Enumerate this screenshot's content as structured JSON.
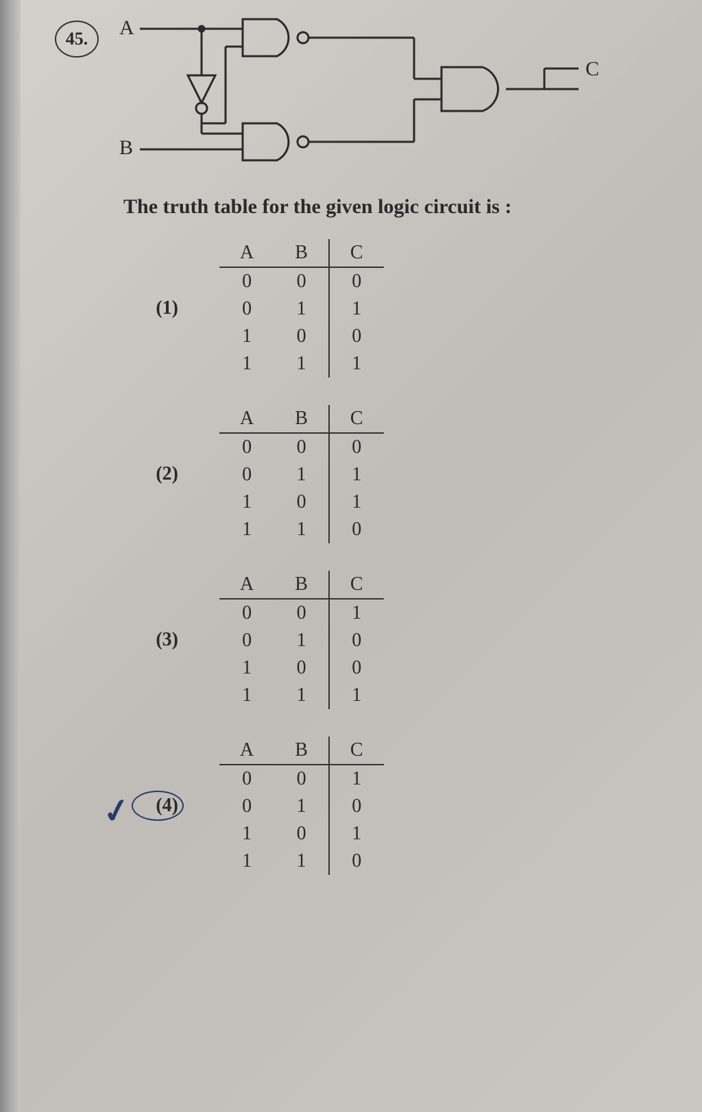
{
  "question_number": "45.",
  "circuit": {
    "input_labels": [
      "A",
      "B"
    ],
    "output_label": "C",
    "components": [
      "NOT",
      "NAND",
      "NAND",
      "AND"
    ],
    "stroke_color": "#2a2a2a",
    "line_width": 3
  },
  "prompt": "The truth table for the given logic circuit is :",
  "table_headers": [
    "A",
    "B",
    "C"
  ],
  "options": [
    {
      "label": "(1)",
      "circled": false,
      "checked": false,
      "rows": [
        [
          "0",
          "0",
          "0"
        ],
        [
          "0",
          "1",
          "1"
        ],
        [
          "1",
          "0",
          "0"
        ],
        [
          "1",
          "1",
          "1"
        ]
      ]
    },
    {
      "label": "(2)",
      "circled": false,
      "checked": false,
      "rows": [
        [
          "0",
          "0",
          "0"
        ],
        [
          "0",
          "1",
          "1"
        ],
        [
          "1",
          "0",
          "1"
        ],
        [
          "1",
          "1",
          "0"
        ]
      ]
    },
    {
      "label": "(3)",
      "circled": false,
      "checked": false,
      "rows": [
        [
          "0",
          "0",
          "1"
        ],
        [
          "0",
          "1",
          "0"
        ],
        [
          "1",
          "0",
          "0"
        ],
        [
          "1",
          "1",
          "1"
        ]
      ]
    },
    {
      "label": "(4)",
      "circled": true,
      "checked": true,
      "rows": [
        [
          "0",
          "0",
          "1"
        ],
        [
          "0",
          "1",
          "0"
        ],
        [
          "1",
          "0",
          "1"
        ],
        [
          "1",
          "1",
          "0"
        ]
      ]
    }
  ],
  "colors": {
    "page_bg": "#c8c4c0",
    "text": "#2a2a2a",
    "pen": "#2a3a6a"
  },
  "fonts": {
    "body_size_pt": 28,
    "prompt_size_pt": 30,
    "family": "serif"
  }
}
